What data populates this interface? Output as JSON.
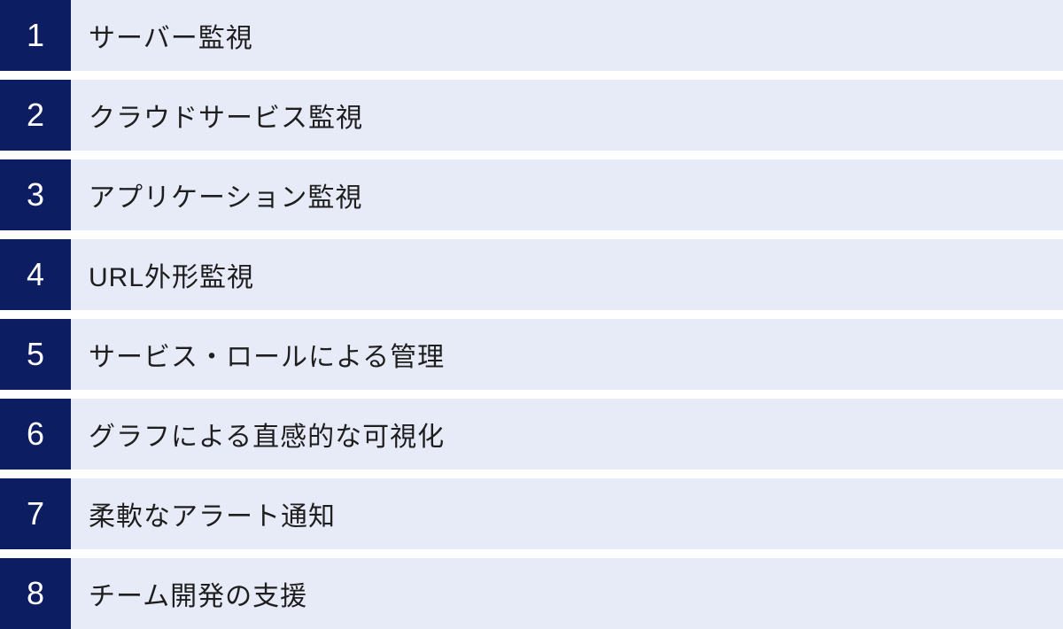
{
  "colors": {
    "badge_navy": "#0d1d61",
    "row_lavender": "#e7ebf8",
    "gap_white": "#ffffff",
    "text_dark": "#1e1e1e",
    "number_white": "#ffffff"
  },
  "items": [
    {
      "number": "1",
      "label": "サーバー監視"
    },
    {
      "number": "2",
      "label": "クラウドサービス監視"
    },
    {
      "number": "3",
      "label": "アプリケーション監視"
    },
    {
      "number": "4",
      "label": "URL外形監視"
    },
    {
      "number": "5",
      "label": "サービス・ロールによる管理"
    },
    {
      "number": "6",
      "label": "グラフによる直感的な可視化"
    },
    {
      "number": "7",
      "label": "柔軟なアラート通知"
    },
    {
      "number": "8",
      "label": "チーム開発の支援"
    }
  ]
}
